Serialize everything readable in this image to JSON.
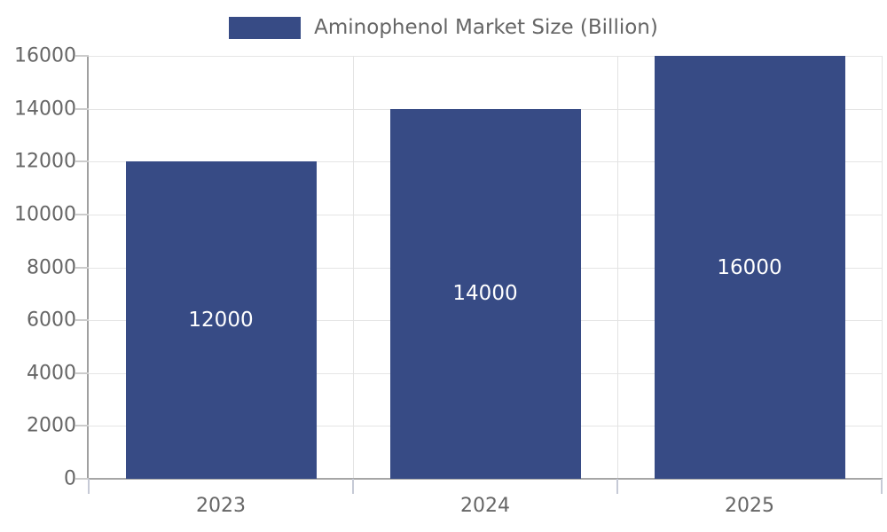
{
  "legend": {
    "label": "Aminophenol Market Size (Billion)",
    "swatch_color": "#374b85"
  },
  "chart_data": {
    "type": "bar",
    "title": "Aminophenol Market Size (Billion)",
    "categories": [
      "2023",
      "2024",
      "2025"
    ],
    "values": [
      12000,
      14000,
      16000
    ],
    "bar_labels": [
      "12000",
      "14000",
      "16000"
    ],
    "bar_color": "#374b85",
    "bar_label_color": "#ffffff",
    "xlabel": "",
    "ylabel": "",
    "ylim": [
      0,
      16000
    ],
    "ytick_step": 2000,
    "yticks": [
      0,
      2000,
      4000,
      6000,
      8000,
      10000,
      12000,
      14000,
      16000
    ],
    "grid": true,
    "legend_position": "top-center"
  }
}
